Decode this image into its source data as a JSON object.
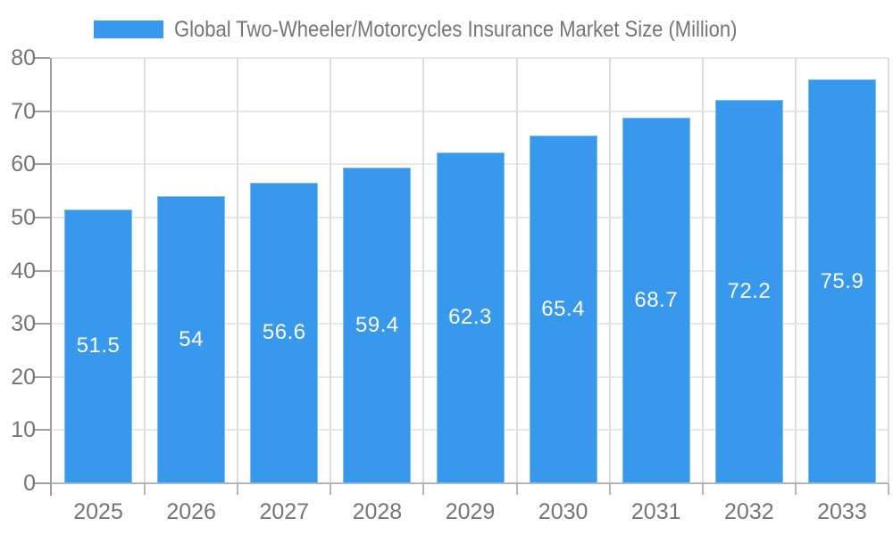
{
  "legend": {
    "label": "Global Two-Wheeler/Motorcycles Insurance Market Size (Million)"
  },
  "chart_data": {
    "type": "bar",
    "title": "Global Two-Wheeler/Motorcycles Insurance Market Size (Million)",
    "categories": [
      "2025",
      "2026",
      "2027",
      "2028",
      "2029",
      "2030",
      "2031",
      "2032",
      "2033"
    ],
    "values": [
      51.5,
      54,
      56.6,
      59.4,
      62.3,
      65.4,
      68.7,
      72.2,
      75.9
    ],
    "value_labels": [
      "51.5",
      "54",
      "56.6",
      "59.4",
      "62.3",
      "65.4",
      "68.7",
      "72.2",
      "75.9"
    ],
    "xlabel": "",
    "ylabel": "",
    "ylim": [
      0,
      80
    ],
    "yticks": [
      0,
      10,
      20,
      30,
      40,
      50,
      60,
      70,
      80
    ],
    "grid": true,
    "legend_position": "top",
    "colors": {
      "bar": "#3898EC",
      "bar_edge": "#7FBCF1",
      "value_label": "#ffffff",
      "axis_text": "#757575",
      "grid_horizontal": "#e7e7e7",
      "grid_vertical": "#dddddd",
      "axis_line": "#9e9e9e",
      "baseline": "#b5b5b5",
      "x_tick": "#b5b5b5"
    }
  }
}
